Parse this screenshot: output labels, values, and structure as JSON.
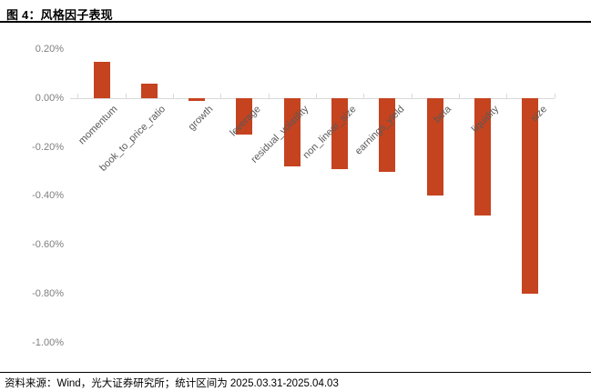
{
  "header": {
    "title": "图 4：风格因子表现"
  },
  "footer": {
    "source": "资料来源：Wind，光大证券研究所；统计区间为 2025.03.31-2025.04.03"
  },
  "colors": {
    "bar": "#C5431F",
    "axis_line": "#D9D9D9",
    "y_label": "#7F7F7F",
    "x_label": "#595959",
    "rule": "#000000"
  },
  "chart_data": {
    "type": "bar",
    "title": "图 4：风格因子表现",
    "categories": [
      "momentum",
      "book_to_price_ratio",
      "growth",
      "leverage",
      "residual_volatility",
      "non_linear_size",
      "earnings_yield",
      "beta",
      "liquidity",
      "size"
    ],
    "values": [
      0.15,
      0.06,
      -0.01,
      -0.15,
      -0.28,
      -0.29,
      -0.3,
      -0.4,
      -0.48,
      -0.8
    ],
    "value_unit": "%",
    "y_ticks": [
      0.2,
      0.0,
      -0.2,
      -0.4,
      -0.6,
      -0.8,
      -1.0
    ],
    "y_tick_labels": [
      "0.20%",
      "0.00%",
      "-0.20%",
      "-0.40%",
      "-0.60%",
      "-0.80%",
      "-1.00%"
    ],
    "ylim": [
      -1.0,
      0.2
    ],
    "xlabel": "",
    "ylabel": "",
    "grid": false,
    "legend": "none",
    "bar_color": "#C5431F",
    "x_label_rotation_deg": -45
  }
}
